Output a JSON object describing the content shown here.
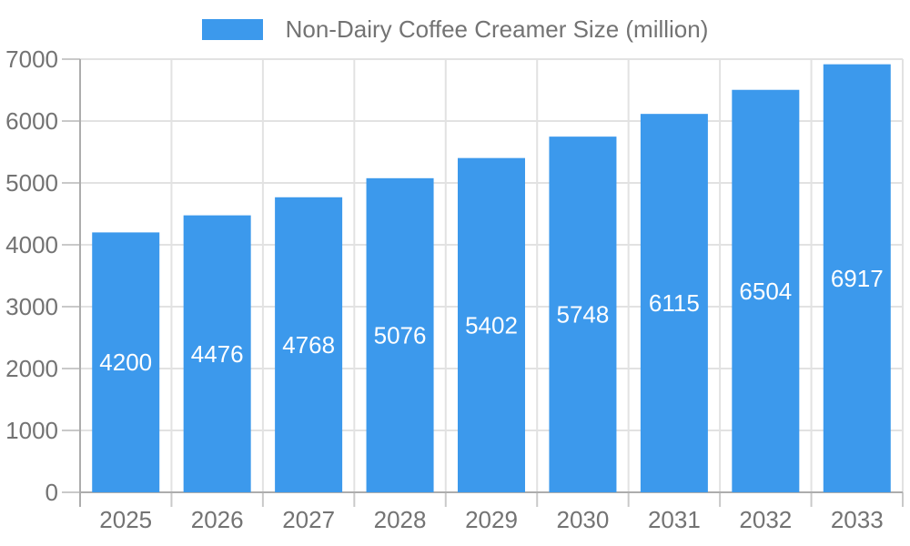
{
  "chart_data": {
    "type": "bar",
    "title": "Non-Dairy Coffee Creamer Size (million)",
    "categories": [
      "2025",
      "2026",
      "2027",
      "2028",
      "2029",
      "2030",
      "2031",
      "2032",
      "2033"
    ],
    "values": [
      4200,
      4476,
      4768,
      5076,
      5402,
      5748,
      6115,
      6504,
      6917
    ],
    "xlabel": "",
    "ylabel": "",
    "ylim": [
      0,
      7000
    ],
    "yticks": [
      0,
      1000,
      2000,
      3000,
      4000,
      5000,
      6000,
      7000
    ],
    "legend_position": "top",
    "grid": true,
    "bar_color": "#3C99EC",
    "value_label_color": "#ffffff",
    "axis_text_color": "#737373",
    "gridline_color": "#e2e2e2",
    "tick_color": "#c9c9c9",
    "axis_line_color": "#adadad",
    "background_color": "#ffffff"
  }
}
